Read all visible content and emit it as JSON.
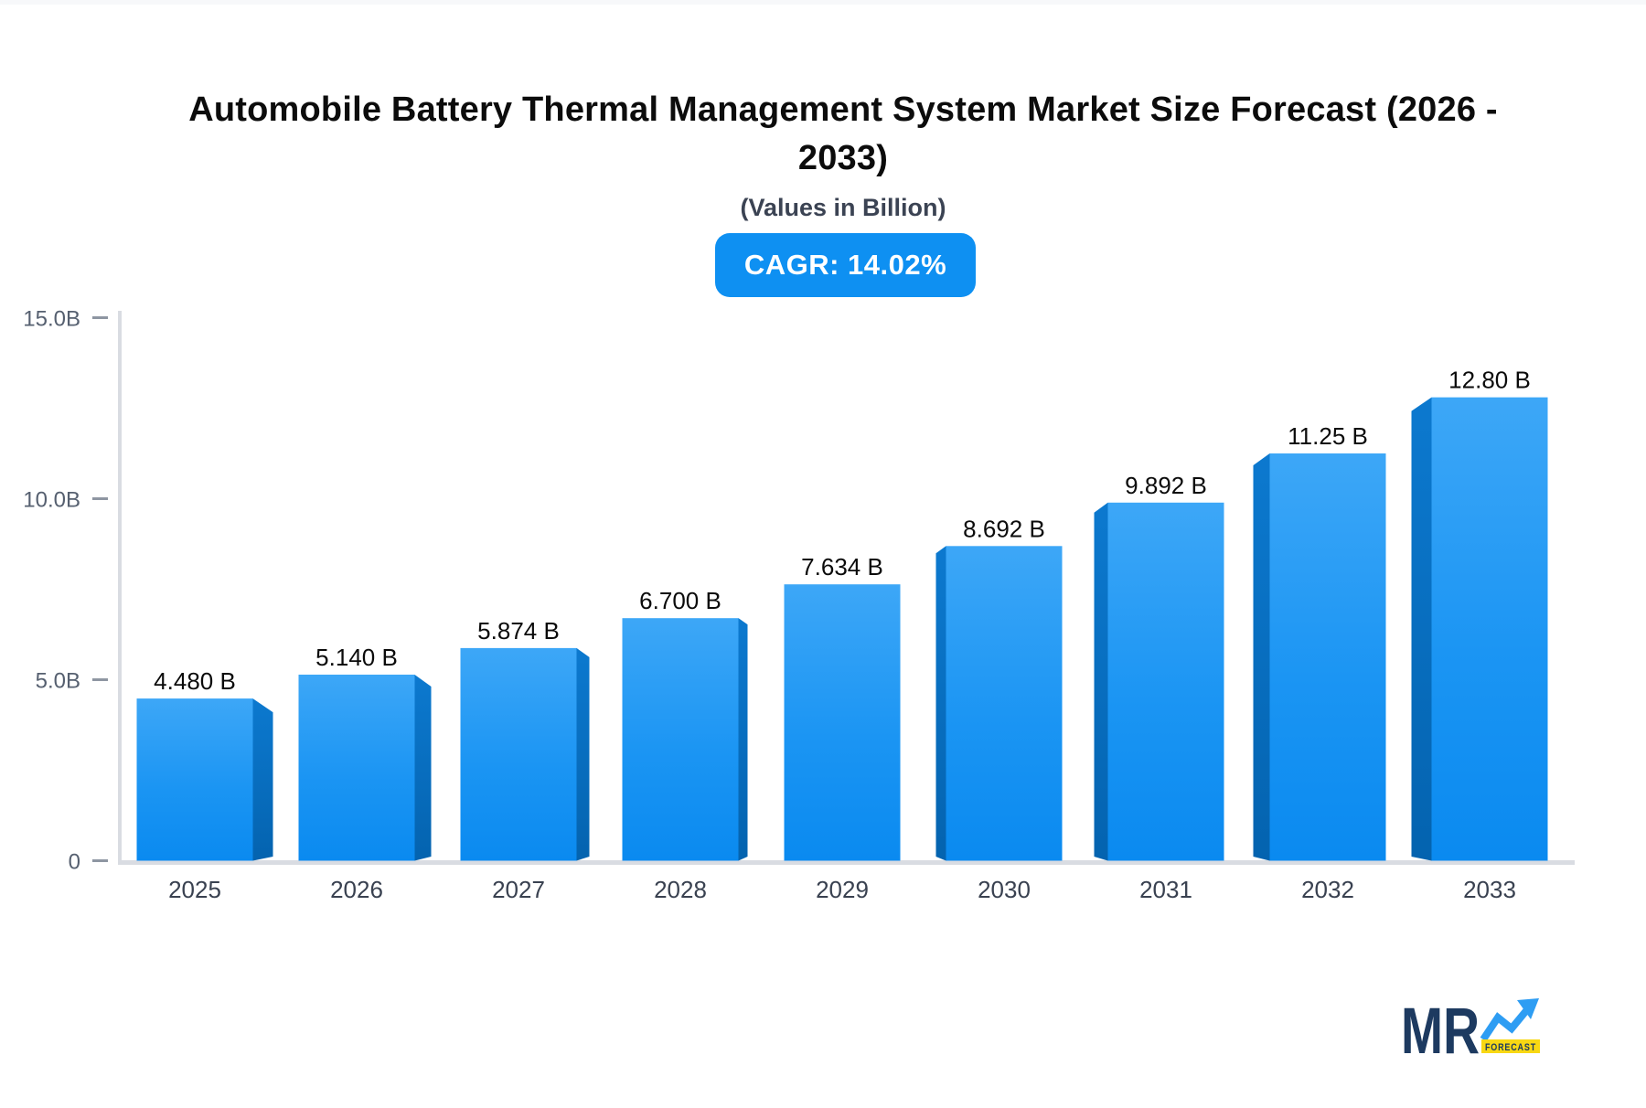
{
  "header": {
    "title_lines": [
      "Automobile Battery Thermal Management System Market Size Forecast (2026 -",
      "2033)"
    ],
    "subtitle": "(Values in Billion)",
    "cagr_label": "CAGR: 14.02%",
    "badge_color": "#0e90f2"
  },
  "chart_data": {
    "type": "bar",
    "title": "Automobile Battery Thermal Management System Market Size Forecast (2026 - 2033)",
    "subtitle": "(Values in Billion)",
    "annotation": "CAGR: 14.02%",
    "categories": [
      "2025",
      "2026",
      "2027",
      "2028",
      "2029",
      "2030",
      "2031",
      "2032",
      "2033"
    ],
    "values": [
      4.48,
      5.14,
      5.874,
      6.7,
      7.634,
      8.692,
      9.892,
      11.25,
      12.8
    ],
    "value_labels": [
      "4.480 B",
      "5.140 B",
      "5.874 B",
      "6.700 B",
      "7.634 B",
      "8.692 B",
      "9.892 B",
      "11.25 B",
      "12.80 B"
    ],
    "y_ticks": [
      {
        "value": 0,
        "label": "0"
      },
      {
        "value": 5,
        "label": "5.0B"
      },
      {
        "value": 10,
        "label": "10.0B"
      },
      {
        "value": 15,
        "label": "15.0B"
      }
    ],
    "ylim": [
      0,
      15
    ],
    "grid": false,
    "legend": false,
    "bar_style_3d": true,
    "colors": {
      "bar_front_top": "#3da7f7",
      "bar_front_mid": "#1b95f3",
      "bar_front_bottom": "#0a8af0",
      "bar_side_top": "#0c79cf",
      "bar_side_bottom": "#0463af",
      "axis_line": "#d9dce2",
      "tick_dash": "#8e96a2",
      "y_label": "#566070",
      "x_label": "#394150",
      "value_label": "#0b0b0b"
    }
  },
  "branding": {
    "logo_text": "MR",
    "logo_sub": "FORECAST",
    "navy": "#1d3a60",
    "blue": "#2e9df3",
    "yellow": "#f8d813"
  }
}
